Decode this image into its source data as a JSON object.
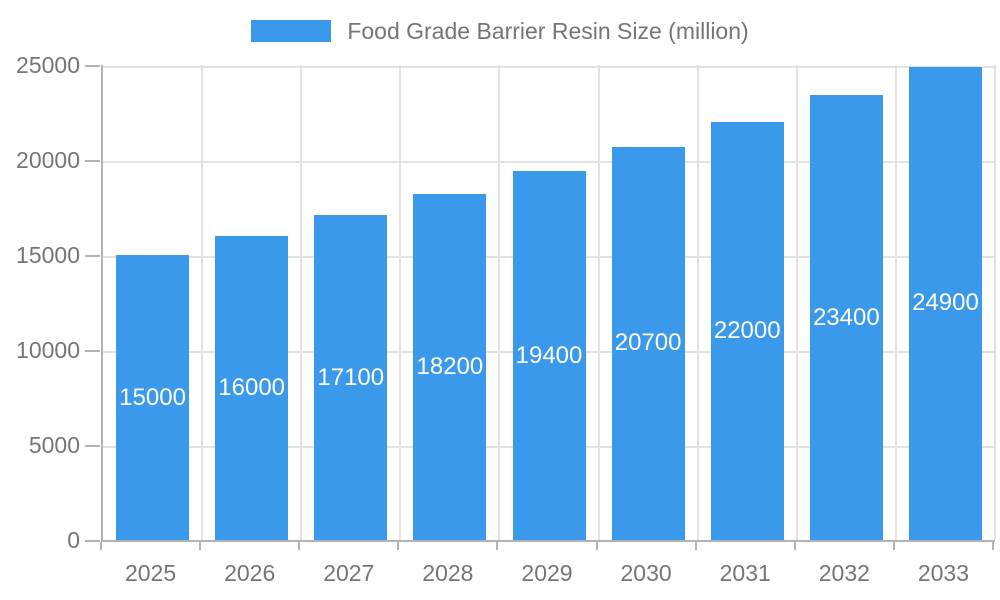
{
  "chart_data": {
    "type": "bar",
    "title": "",
    "legend": "Food Grade Barrier Resin Size (million)",
    "legend_position": "top",
    "categories": [
      "2025",
      "2026",
      "2027",
      "2028",
      "2029",
      "2030",
      "2031",
      "2032",
      "2033"
    ],
    "values": [
      15000,
      16000,
      17100,
      18200,
      19400,
      20700,
      22000,
      23400,
      24900
    ],
    "bar_value_labels": [
      "15000",
      "16000",
      "17100",
      "18200",
      "19400",
      "20700",
      "22000",
      "23400",
      "24900"
    ],
    "xlabel": "",
    "ylabel": "",
    "ylim": [
      0,
      25000
    ],
    "y_ticks": [
      0,
      5000,
      10000,
      15000,
      20000,
      25000
    ],
    "y_tick_labels": [
      "0",
      "5000",
      "10000",
      "15000",
      "20000",
      "25000"
    ],
    "grid": true,
    "colors": {
      "bar": "#3B99EC",
      "bar_label_text": "#FFFFFF",
      "axis_text": "#757575",
      "legend_text": "#757575",
      "gridline": "#E2E2E2",
      "axis_line": "#B3B3B3",
      "tick": "#B3B3B3",
      "background": "#FFFFFF"
    }
  }
}
